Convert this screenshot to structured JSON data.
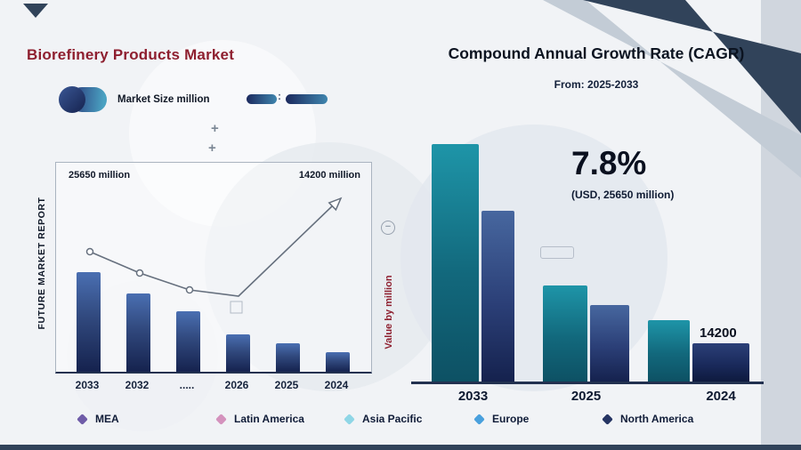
{
  "palette": {
    "accent_red": "#8e1f2f",
    "dark_slate": "#31435a",
    "navy": "#15224e",
    "teal": "#1e95a8",
    "steel_blue": "#4a6fb2"
  },
  "icons": {
    "plus": "+",
    "circled_minus": "−",
    "legend_colon": ":"
  },
  "chart_data": [
    {
      "type": "bar",
      "title": "Biorefinery Products Market",
      "legend": [
        "Market Size million"
      ],
      "side_label": "FUTURE MARKET REPORT",
      "annotations": {
        "start": "25650 million",
        "end": "14200 million"
      },
      "categories": [
        "2033",
        "2032",
        ".....",
        "2026",
        "2025",
        "2024"
      ],
      "values": [
        25650,
        22600,
        20100,
        16800,
        15500,
        14200
      ],
      "unit": "million",
      "grid": false,
      "note": "bars descend from 2033 to 2024; declining marker line turns into rising arrow toward 14200 million annotation"
    },
    {
      "type": "bar",
      "title": "Compound Annual Growth Rate (CAGR)",
      "subtitle": "From: 2025-2033",
      "cagr": "7.8%",
      "cagr_note": "(USD, 25650 million)",
      "ylabel": "Value by million",
      "categories": [
        "2033",
        "2025",
        "2024"
      ],
      "series": [
        {
          "name": "series-a",
          "values": [
            25650,
            10400,
            6600
          ]
        },
        {
          "name": "series-b",
          "values": [
            18400,
            8300,
            4100
          ]
        }
      ],
      "data_label": "14200",
      "unit": "million",
      "grid": false,
      "legend_position": "none"
    }
  ],
  "footer": {
    "items": [
      {
        "label": "MEA",
        "color": "#6f5ca8"
      },
      {
        "label": "Latin America",
        "color": "#d492bd"
      },
      {
        "label": "Asia Pacific",
        "color": "#8fd6e6"
      },
      {
        "label": "Europe",
        "color": "#49a0dd"
      },
      {
        "label": "North America",
        "color": "#253463"
      }
    ]
  }
}
